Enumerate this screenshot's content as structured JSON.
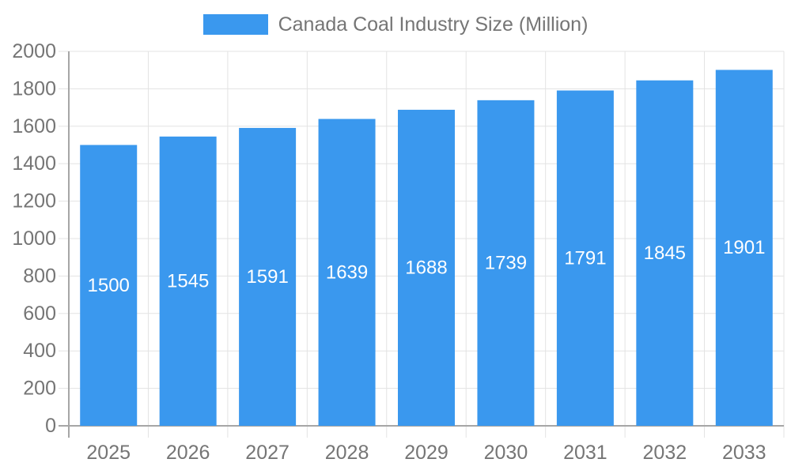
{
  "chart_data": {
    "type": "bar",
    "title": "Canada Coal Industry Size (Million)",
    "legend": [
      "Canada Coal Industry Size (Million)"
    ],
    "legend_position": "top-center",
    "categories": [
      "2025",
      "2026",
      "2027",
      "2028",
      "2029",
      "2030",
      "2031",
      "2032",
      "2033"
    ],
    "series": [
      {
        "name": "Canada Coal Industry Size (Million)",
        "values": [
          1500,
          1545,
          1591,
          1639,
          1688,
          1739,
          1791,
          1845,
          1901
        ]
      }
    ],
    "value_labels_inside_bars": true,
    "xlabel": "",
    "ylabel": "",
    "ylim": [
      0,
      2000
    ],
    "yticks": [
      0,
      200,
      400,
      600,
      800,
      1000,
      1200,
      1400,
      1600,
      1800,
      2000
    ],
    "grid": true,
    "colors": {
      "bar": "#3a98ee",
      "value_label": "#ffffff",
      "tick_label": "#757575",
      "legend_text": "#757575",
      "grid_line": "#e3e3e3",
      "axis_line": "#a6a6a6",
      "background": "#ffffff"
    }
  }
}
